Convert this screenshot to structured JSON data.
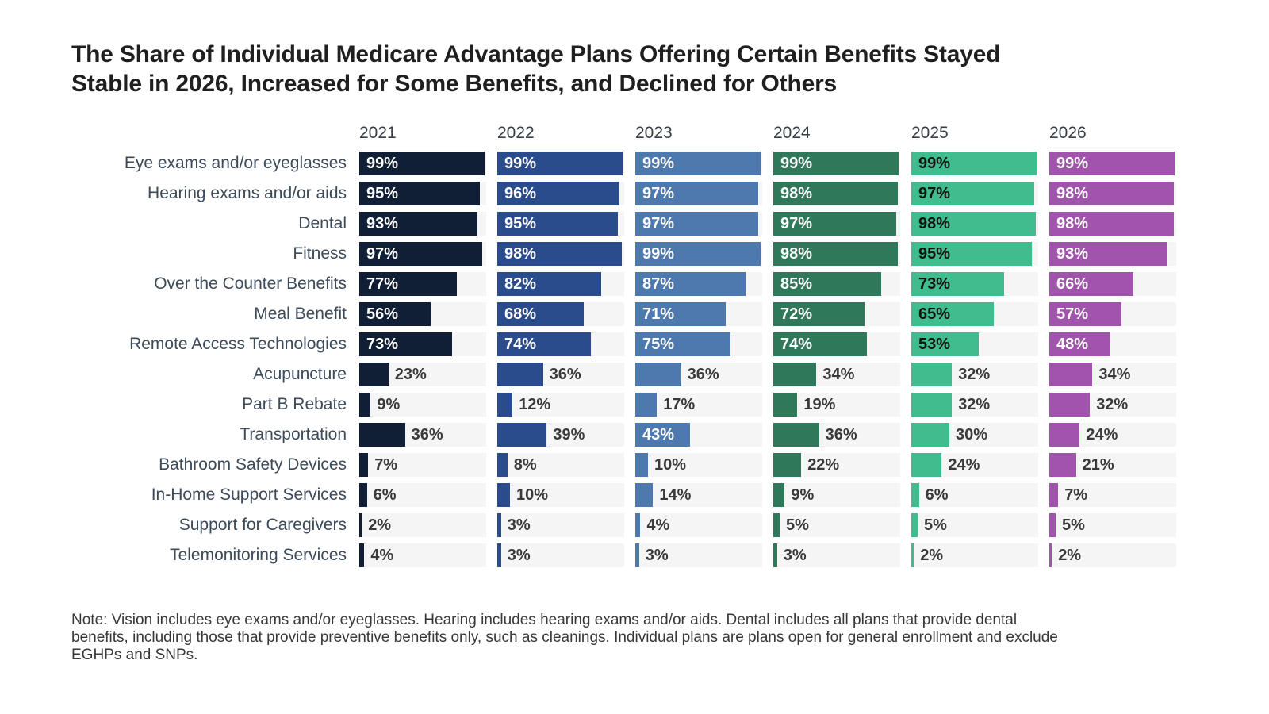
{
  "page": {
    "title_lines": [
      "The Share of Individual Medicare Advantage Plans Offering Certain Benefits Stayed",
      "Stable in 2026, Increased for Some Benefits, and Declined for Others"
    ],
    "note": "Note: Vision includes eye exams and/or eyeglasses. Hearing includes hearing exams and/or aids. Dental includes all plans that provide dental benefits, including those that provide preventive benefits only, such as cleanings. Individual plans are plans open for general enrollment and exclude EGHPs and SNPs."
  },
  "chart_data": {
    "type": "bar",
    "orientation": "horizontal",
    "xlim": [
      0,
      100
    ],
    "value_suffix": "%",
    "grid": false,
    "legend_position": "column-headers-top",
    "track_color": "#f5f5f5",
    "outside_label_color": "#3a3a3a",
    "inside_label_threshold": 43,
    "categories": [
      "Eye exams and/or eyeglasses",
      "Hearing exams and/or aids",
      "Dental",
      "Fitness",
      "Over the Counter Benefits",
      "Meal Benefit",
      "Remote Access Technologies",
      "Acupuncture",
      "Part B Rebate",
      "Transportation",
      "Bathroom Safety Devices",
      "In-Home Support Services",
      "Support for Caregivers",
      "Telemonitoring Services"
    ],
    "series": [
      {
        "name": "2021",
        "color": "#101e36",
        "inside_label_color": "#ffffff",
        "values": [
          99,
          95,
          93,
          97,
          77,
          56,
          73,
          23,
          9,
          36,
          7,
          6,
          2,
          4
        ]
      },
      {
        "name": "2022",
        "color": "#2b4c8c",
        "inside_label_color": "#ffffff",
        "values": [
          99,
          96,
          95,
          98,
          82,
          68,
          74,
          36,
          12,
          39,
          8,
          10,
          3,
          3
        ]
      },
      {
        "name": "2023",
        "color": "#4d79ae",
        "inside_label_color": "#ffffff",
        "values": [
          99,
          97,
          97,
          99,
          87,
          71,
          75,
          36,
          17,
          43,
          10,
          14,
          4,
          3
        ]
      },
      {
        "name": "2024",
        "color": "#30785a",
        "inside_label_color": "#ffffff",
        "values": [
          99,
          98,
          97,
          98,
          85,
          72,
          74,
          34,
          19,
          36,
          22,
          9,
          5,
          3
        ]
      },
      {
        "name": "2025",
        "color": "#3fbd8e",
        "inside_label_color": "#121212",
        "values": [
          99,
          97,
          98,
          95,
          73,
          65,
          53,
          32,
          32,
          30,
          24,
          6,
          5,
          2
        ]
      },
      {
        "name": "2026",
        "color": "#a054ab",
        "inside_label_color": "#ffffff",
        "values": [
          99,
          98,
          98,
          93,
          66,
          57,
          48,
          34,
          32,
          24,
          21,
          7,
          5,
          2
        ]
      }
    ]
  }
}
